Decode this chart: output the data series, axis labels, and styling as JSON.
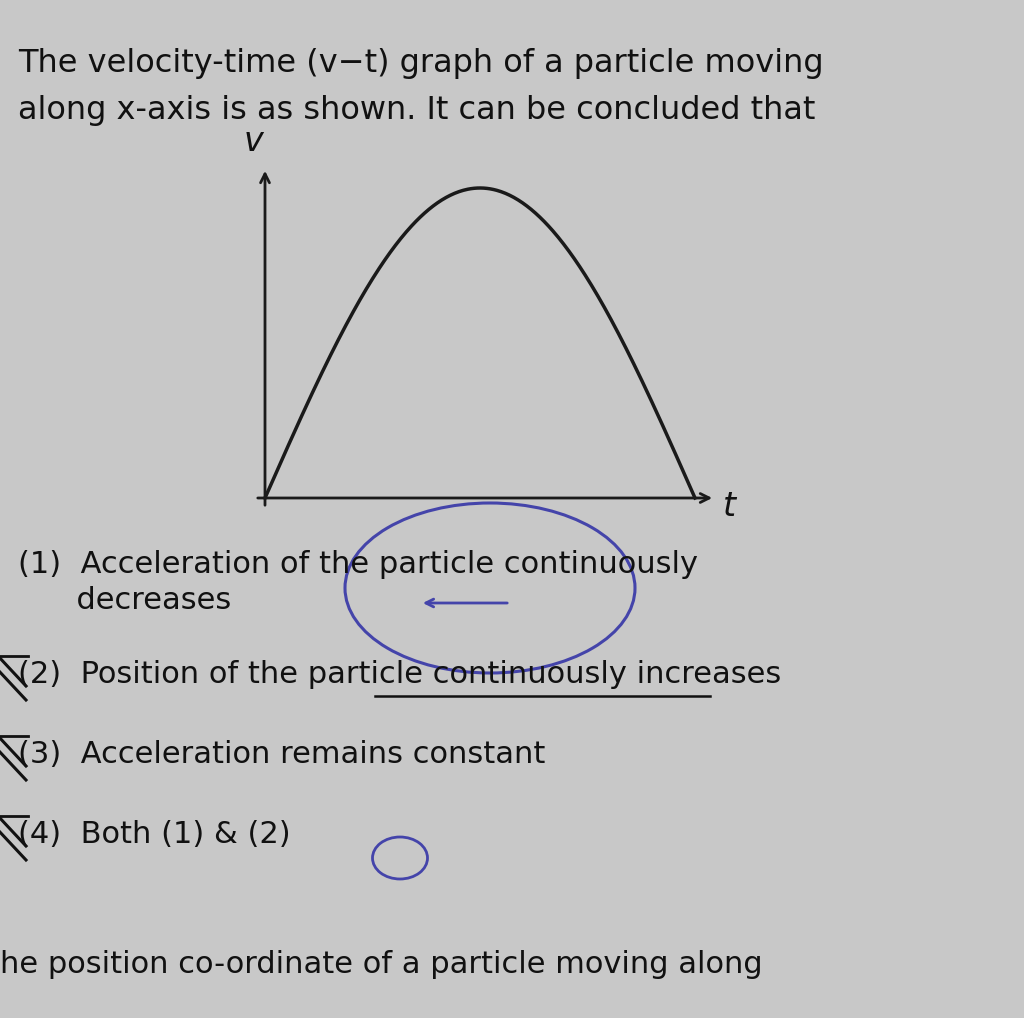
{
  "background_color": "#c8c8c8",
  "title_line1": "The velocity-time (v−t) graph of a particle moving",
  "title_line2": "along x-axis is as shown. It can be concluded that",
  "title_fontsize": 23,
  "title_color": "#111111",
  "v_label": "v",
  "t_label": "t",
  "axis_label_fontsize": 24,
  "curve_color": "#1a1a1a",
  "curve_linewidth": 2.5,
  "axis_linewidth": 2.0,
  "opt1_line1": "(1)  Acceleration of the particle continuously",
  "opt1_line2": "      decreases",
  "opt2": "(2)  Position of the particle continuously increases",
  "opt3": "(3)  Acceleration remains constant",
  "opt4": "(4)  Both (1) & (2)",
  "option_fontsize": 22,
  "footer_text": "he position co-ordinate of a particle moving along",
  "footer_fontsize": 22,
  "circle_color": "#4444aa",
  "circle_linewidth": 2.2,
  "underline_color": "#111111",
  "bracket_color": "#111111"
}
